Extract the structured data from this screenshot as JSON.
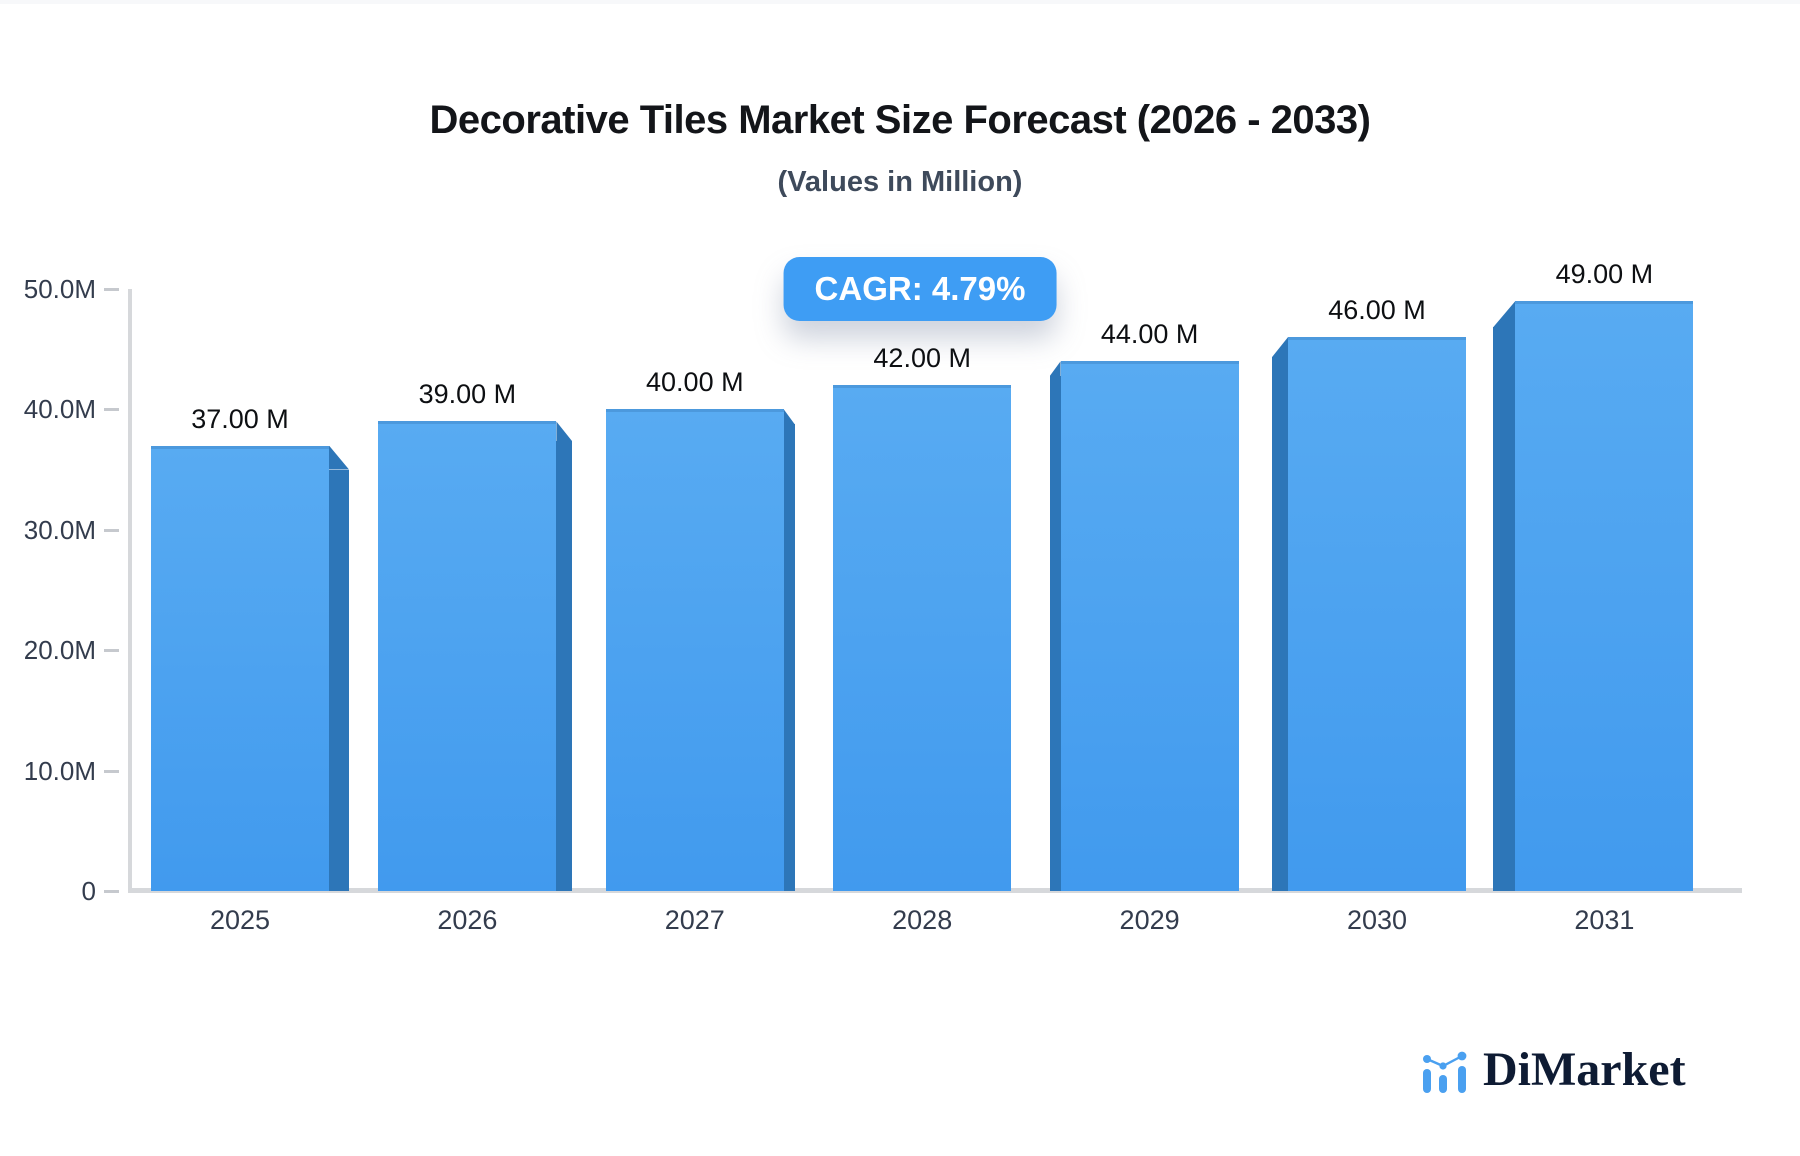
{
  "header": {
    "title": "Decorative Tiles Market Size Forecast (2026 - 2033)",
    "subtitle": "(Values in Million)",
    "cagr_badge": "CAGR: 4.79%"
  },
  "chart_data": {
    "type": "bar",
    "title": "Decorative Tiles Market Size Forecast (2026 - 2033)",
    "subtitle": "(Values in Million)",
    "annotation": "CAGR: 4.79%",
    "categories": [
      "2025",
      "2026",
      "2027",
      "2028",
      "2029",
      "2030",
      "2031"
    ],
    "values": [
      37,
      39,
      40,
      42,
      44,
      46,
      49
    ],
    "value_labels": [
      "37.00 M",
      "39.00 M",
      "40.00 M",
      "42.00 M",
      "44.00 M",
      "46.00 M",
      "49.00 M"
    ],
    "unit": "Million",
    "xlabel": "",
    "ylabel": "",
    "ylim": [
      0,
      50
    ],
    "grid": false,
    "legend": "none",
    "y_ticks": [
      {
        "value": 50,
        "label": "50.0M"
      },
      {
        "value": 40,
        "label": "40.0M"
      },
      {
        "value": 30,
        "label": "30.0M"
      },
      {
        "value": 20,
        "label": "20.0M"
      },
      {
        "value": 10,
        "label": "10.0M"
      },
      {
        "value": 0,
        "label": "0"
      }
    ],
    "colors": {
      "bar_fill_top": "#58abf2",
      "bar_fill_bottom": "#419aee",
      "bar_side": "#2d76b8",
      "badge_bg": "#3e9df4",
      "axis_line": "#d6d8db",
      "tick": "#c6c9ce",
      "title": "#131519",
      "subtitle": "#3e4a5b",
      "axis_label": "#333c4d",
      "value_label": "#0d0f12"
    }
  },
  "branding": {
    "logo_text": "DiMarket",
    "logo_icon": "mini-bar-chart-icon",
    "logo_text_color": "#0e1b33",
    "logo_icon_color": "#4aa0f0"
  }
}
